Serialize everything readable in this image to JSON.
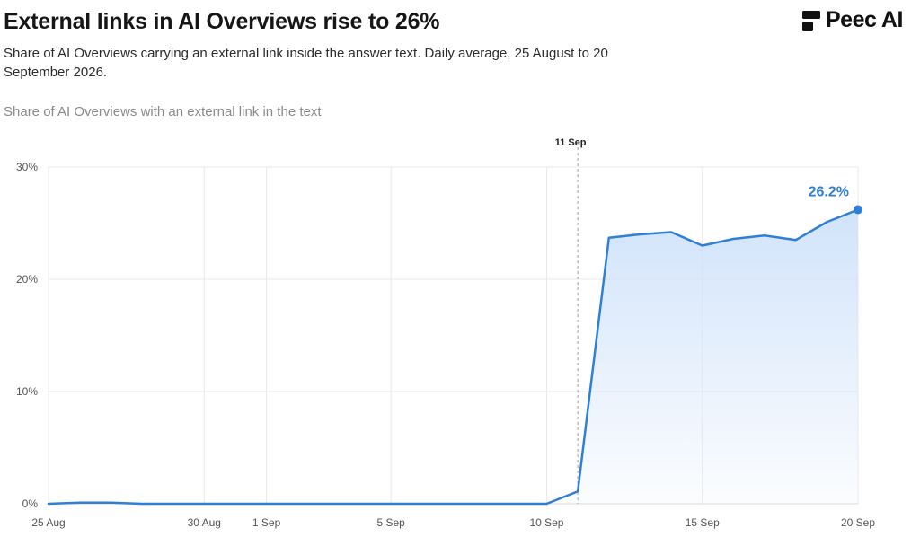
{
  "header": {
    "title": "External links in AI Overviews rise to 26%",
    "subtitle": "Share of AI Overviews carrying an external link inside the answer text. Daily average, 25 August to 20 September 2026.",
    "panel_label": "Share of AI Overviews with an external link in the text"
  },
  "brand": {
    "logo_text": "Peec AI",
    "logo_icon": "peec-logo-icon"
  },
  "colors": {
    "line": "#2f7fd6",
    "area_top": "#cfe2fa",
    "grid": "#e9e9e9",
    "marker": "#9a9a9a"
  },
  "chart_data": {
    "type": "area",
    "title": "Share of AI Overviews with an external link in the text",
    "xlabel": "",
    "ylabel": "",
    "x_start": "25 Aug",
    "x_end": "20 Sep",
    "x": [
      "25 Aug",
      "26 Aug",
      "27 Aug",
      "28 Aug",
      "29 Aug",
      "30 Aug",
      "31 Aug",
      "1 Sep",
      "2 Sep",
      "3 Sep",
      "4 Sep",
      "5 Sep",
      "6 Sep",
      "7 Sep",
      "8 Sep",
      "9 Sep",
      "10 Sep",
      "11 Sep",
      "12 Sep",
      "13 Sep",
      "14 Sep",
      "15 Sep",
      "16 Sep",
      "17 Sep",
      "18 Sep",
      "19 Sep",
      "20 Sep"
    ],
    "series": [
      {
        "values": [
          0.0,
          0.1,
          0.1,
          0.0,
          0.0,
          0.0,
          0.0,
          0.0,
          0.0,
          0.0,
          0.0,
          0.0,
          0.0,
          0.0,
          0.0,
          0.0,
          0.0,
          1.1,
          23.7,
          24.0,
          24.2,
          23.0,
          23.6,
          23.9,
          23.5,
          25.1,
          26.2
        ]
      }
    ],
    "ylim": [
      0,
      30
    ],
    "y_ticks": [
      0,
      10,
      20,
      30
    ],
    "y_tick_labels": [
      "0%",
      "10%",
      "20%",
      "30%"
    ],
    "x_ticks": [
      "25 Aug",
      "30 Aug",
      "1 Sep",
      "5 Sep",
      "10 Sep",
      "15 Sep",
      "20 Sep"
    ],
    "grid": true,
    "legend": "none",
    "annotations": {
      "marker_label": "11 Sep",
      "marker_index": 17,
      "end_label": "26.2%"
    }
  }
}
